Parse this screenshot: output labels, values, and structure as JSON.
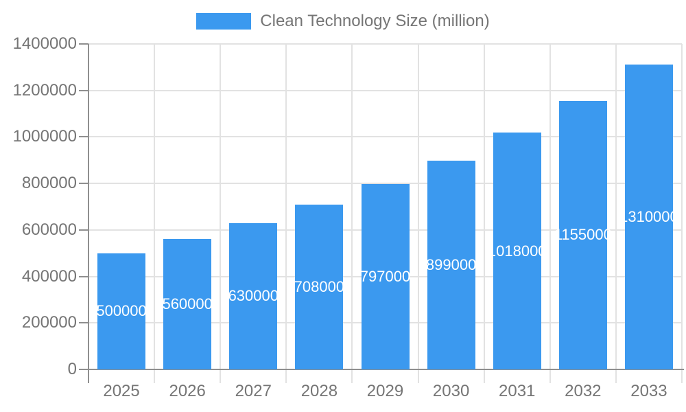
{
  "chart_data": {
    "type": "bar",
    "title": "",
    "legend": {
      "label": "Clean Technology Size (million)",
      "position": "top"
    },
    "categories": [
      "2025",
      "2026",
      "2027",
      "2028",
      "2029",
      "2030",
      "2031",
      "2032",
      "2033"
    ],
    "series": [
      {
        "name": "Clean Technology Size (million)",
        "values": [
          500000,
          560000,
          630000,
          708000,
          797000,
          899000,
          1018000,
          1155000,
          1310000
        ]
      }
    ],
    "bar_value_labels": [
      "500000",
      "560000",
      "630000",
      "708000",
      "797000",
      "899000",
      "1018000",
      "1155000",
      "1310000"
    ],
    "xlabel": "",
    "ylabel": "",
    "ylim": [
      0,
      1400000
    ],
    "y_ticks": [
      0,
      200000,
      400000,
      600000,
      800000,
      1000000,
      1200000,
      1400000
    ],
    "y_tick_labels": [
      "0",
      "200000",
      "400000",
      "600000",
      "800000",
      "1000000",
      "1200000",
      "1400000"
    ],
    "grid": true,
    "value_labels_inside_bars": true,
    "colors": {
      "bar": "#3b99ef",
      "grid": "#e2e2e2",
      "axis": "#8f8f8f",
      "tick_text": "#757575",
      "legend_text": "#757575",
      "bar_label_text": "#ffffff",
      "background": "#ffffff"
    }
  }
}
